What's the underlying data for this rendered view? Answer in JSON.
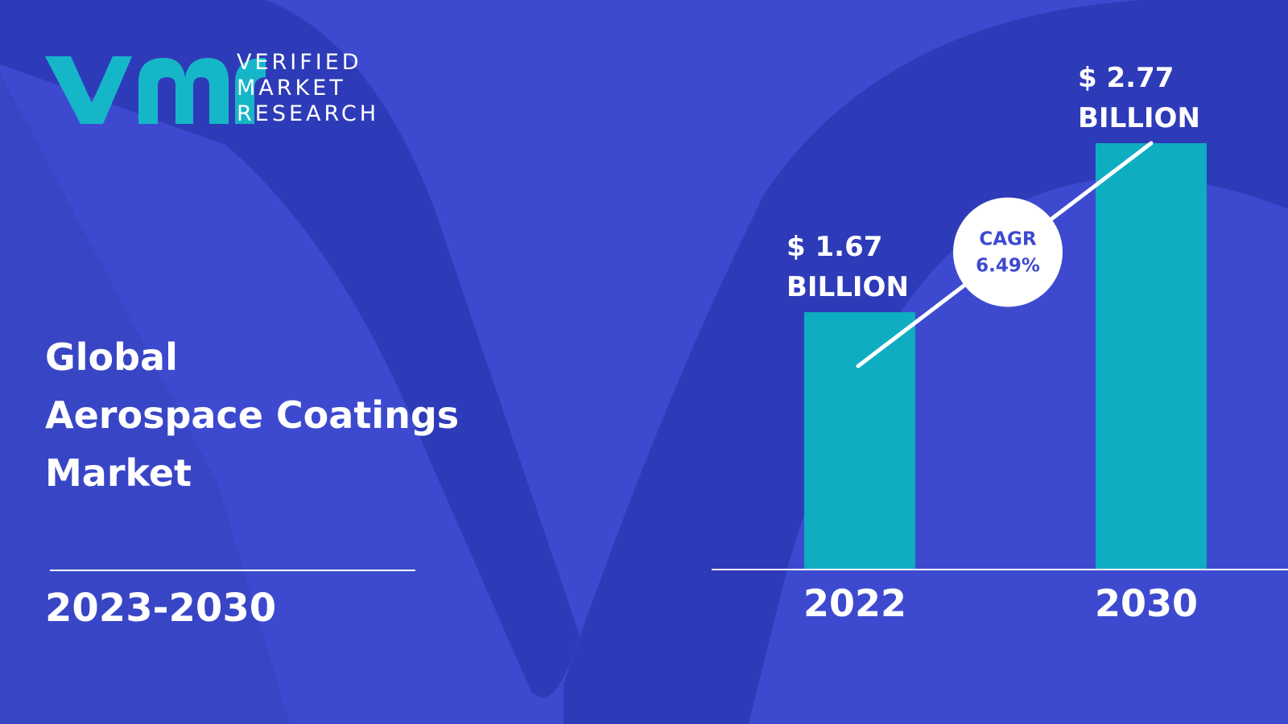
{
  "brand": {
    "line1": "VERIFIED",
    "line2": "MARKET",
    "line3": "RESEARCH",
    "logo_icon": "vmr-logo-icon",
    "logo_color": "#16b6c9"
  },
  "title": {
    "line1": "Global",
    "line2": "Aerospace Coatings",
    "line3": "Market"
  },
  "period": "2023-2030",
  "colors": {
    "background": "#3d4acf",
    "background_shape": "#2e3bb8",
    "bar": "#0fadc2",
    "text": "#ffffff"
  },
  "chart_data": {
    "type": "bar",
    "categories": [
      "2022",
      "2030"
    ],
    "values": [
      1.67,
      2.77
    ],
    "value_labels": [
      {
        "line1": "$ 1.67",
        "line2": "BILLION"
      },
      {
        "line1": "$ 2.77",
        "line2": "BILLION"
      }
    ],
    "unit": "USD Billion",
    "ylim": [
      0,
      2.77
    ],
    "grid": false,
    "annotation": {
      "line1": "CAGR",
      "line2": "6.49%"
    }
  }
}
